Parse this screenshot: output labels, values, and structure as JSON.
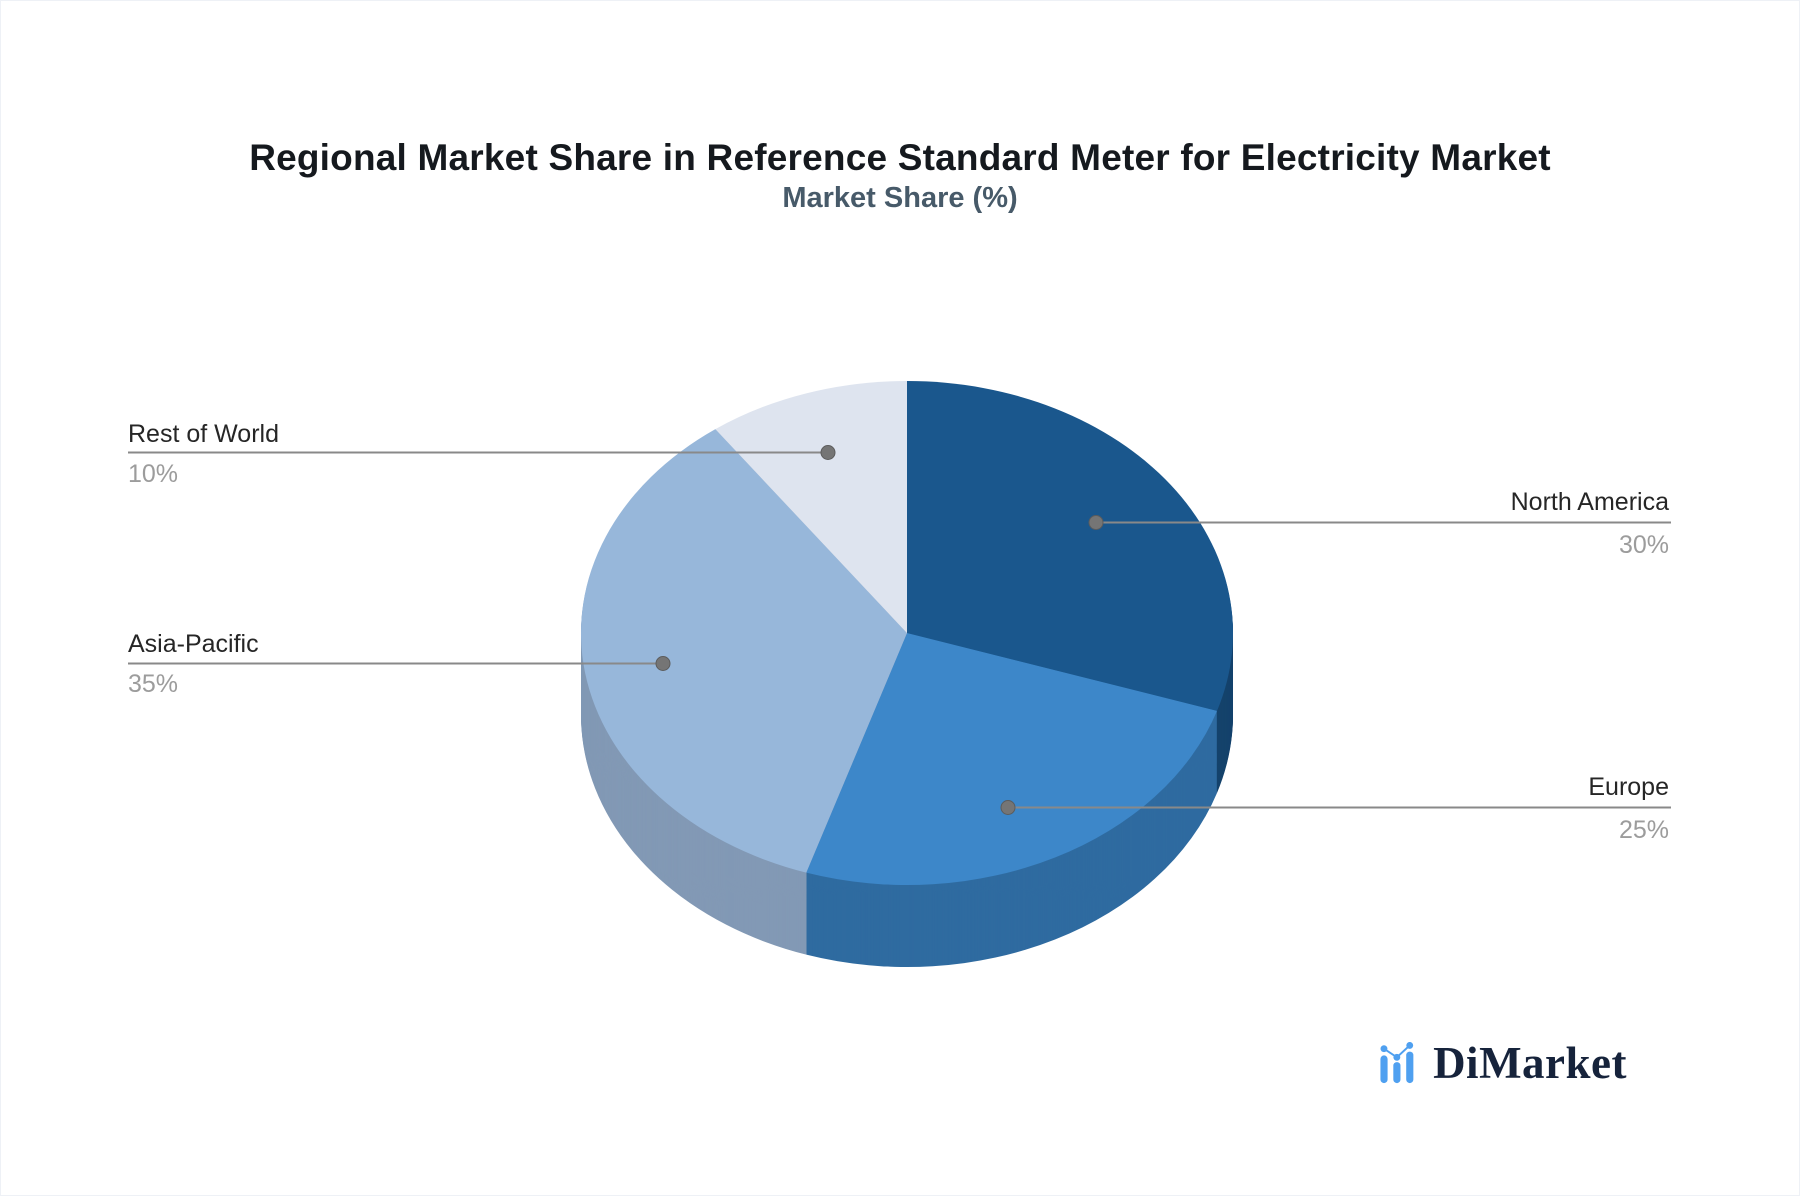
{
  "page": {
    "background": "#FFFFFF"
  },
  "chart_data": {
    "type": "pie",
    "style": "3d",
    "title": "Regional Market Share in Reference Standard Meter for Electricity Market",
    "subtitle": "Market Share (%)",
    "unit": "%",
    "start_angle": "12-oclock",
    "direction": "clockwise",
    "legend": "none",
    "slices": [
      {
        "label": "North America",
        "value": 30,
        "pct_label": "30%",
        "color": "#1A578D",
        "side_color": "#15436C",
        "label_side": "right"
      },
      {
        "label": "Europe",
        "value": 25,
        "pct_label": "25%",
        "color": "#3D87C9",
        "side_color": "#2F6BA0",
        "label_side": "right"
      },
      {
        "label": "Asia-Pacific",
        "value": 35,
        "pct_label": "35%",
        "color": "#97B7DA",
        "side_color": "#8299B5",
        "label_side": "left"
      },
      {
        "label": "Rest of World",
        "value": 10,
        "pct_label": "10%",
        "color": "#DEE4EF",
        "side_color": "#B9C2D4",
        "label_side": "left"
      }
    ],
    "label_style": {
      "name_color": "#262626",
      "value_color": "#9C9C9C",
      "leader_color": "#898989"
    }
  },
  "brand": {
    "name": "DiMarket",
    "icon": "bar-line-chart-icon",
    "text_color": "#16233B",
    "accent_color": "#4FA0F0"
  }
}
